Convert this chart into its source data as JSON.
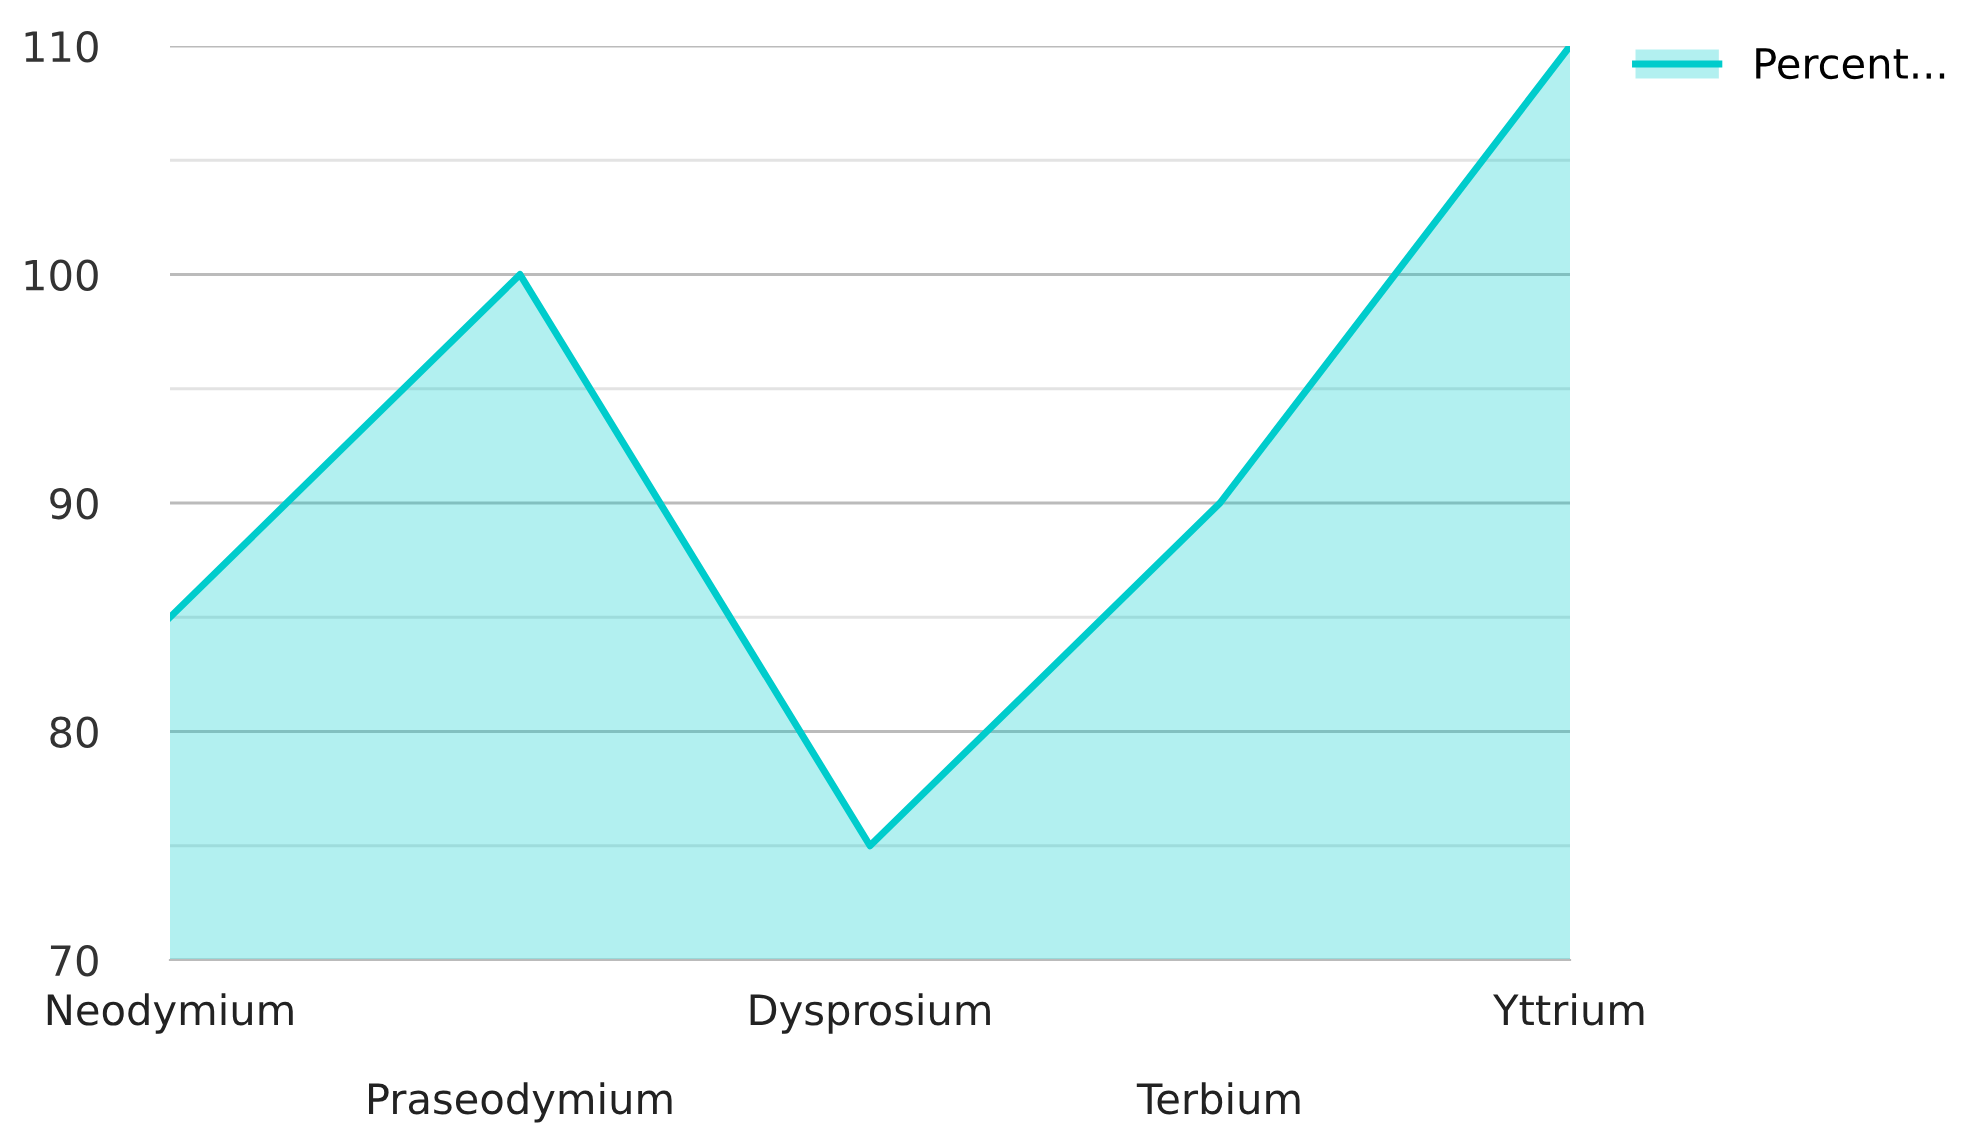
{
  "chart_data": {
    "type": "area",
    "categories": [
      "Neodymium",
      "Praseodymium",
      "Dysprosium",
      "Terbium",
      "Yttrium"
    ],
    "series": [
      {
        "name": "Percent...",
        "color": "#00cccc",
        "values": [
          85,
          100,
          75,
          90,
          110
        ]
      }
    ],
    "ylim": [
      70,
      110
    ],
    "yticks": [
      70,
      {
        "value": 75,
        "label": null
      },
      80,
      {
        "value": 85,
        "label": null
      },
      90,
      {
        "value": 95,
        "label": null
      },
      100,
      {
        "value": 105,
        "label": null
      },
      110
    ],
    "grid": "y",
    "legend": "top right",
    "marker": "none",
    "line_style": "solid"
  }
}
